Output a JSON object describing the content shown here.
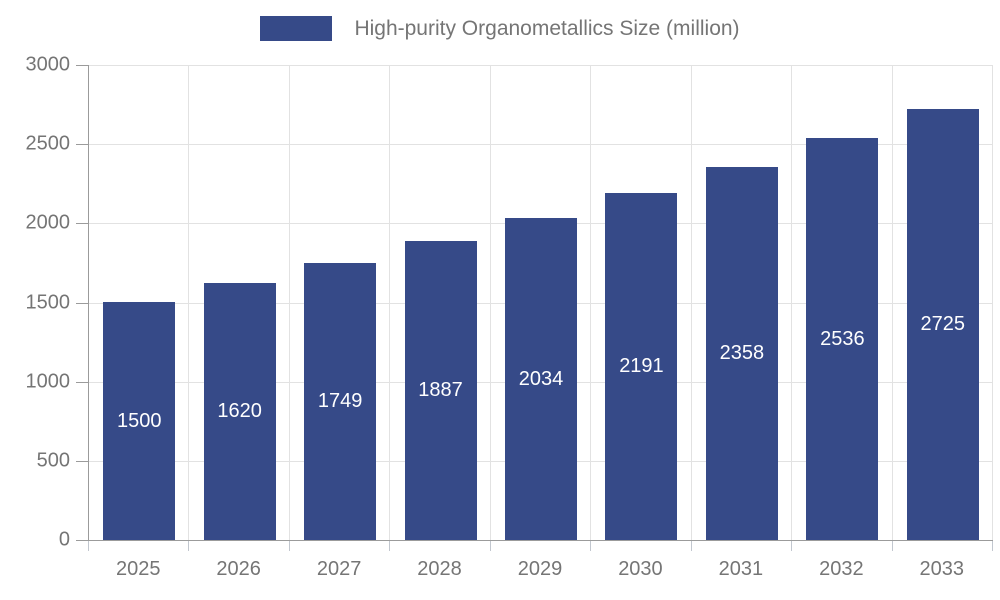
{
  "legend": {
    "label": "High-purity Organometallics Size (million)"
  },
  "colors": {
    "background": "#ffffff",
    "bar": "#364a88",
    "grid": "#e2e2e2",
    "axis": "#9b9b9b",
    "tick": "#c2c7cf",
    "muted_text": "#757575",
    "value_label": "#ffffff"
  },
  "chart_data": {
    "type": "bar",
    "series_name": "High-purity Organometallics Size (million)",
    "categories": [
      "2025",
      "2026",
      "2027",
      "2028",
      "2029",
      "2030",
      "2031",
      "2032",
      "2033"
    ],
    "values": [
      1500,
      1620,
      1749,
      1887,
      2034,
      2191,
      2358,
      2536,
      2725
    ],
    "title": "",
    "xlabel": "",
    "ylabel": "",
    "ylim": [
      0,
      3000
    ],
    "y_ticks": [
      0,
      500,
      1000,
      1500,
      2000,
      2500,
      3000
    ],
    "grid": true,
    "legend_position": "top",
    "value_label_position": "inside-center"
  }
}
